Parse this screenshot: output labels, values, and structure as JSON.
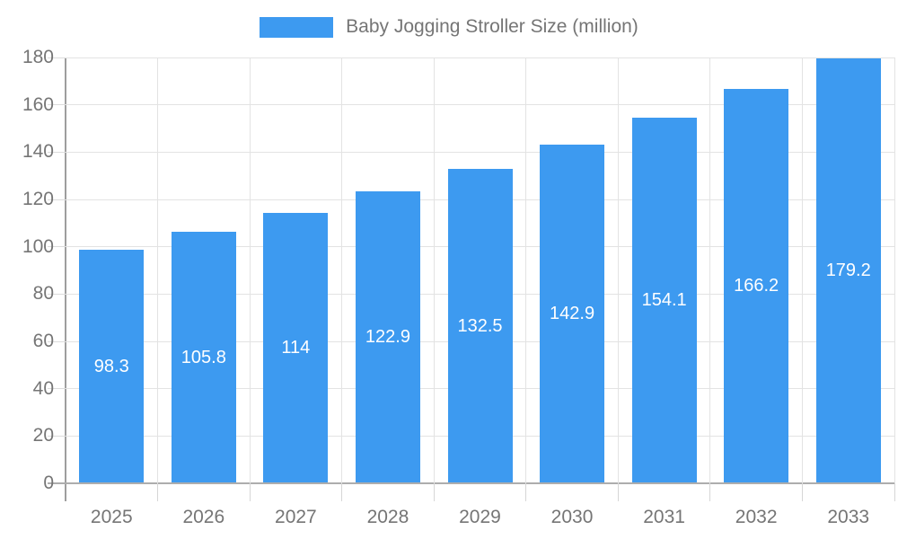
{
  "chart_data": {
    "type": "bar",
    "title": "Baby Jogging Stroller Size (million)",
    "series_name": "Baby Jogging Stroller Size (million)",
    "categories": [
      "2025",
      "2026",
      "2027",
      "2028",
      "2029",
      "2030",
      "2031",
      "2032",
      "2033"
    ],
    "values": [
      98.3,
      105.8,
      114,
      122.9,
      132.5,
      142.9,
      154.1,
      166.2,
      179.2
    ],
    "value_labels": [
      "98.3",
      "105.8",
      "114",
      "122.9",
      "132.5",
      "142.9",
      "154.1",
      "166.2",
      "179.2"
    ],
    "yticks": [
      0,
      20,
      40,
      60,
      80,
      100,
      120,
      140,
      160,
      180
    ],
    "ylim": [
      0,
      180
    ],
    "grid": true,
    "legend_position": "top",
    "bar_color": "#3D9AF0",
    "value_label_color": "#FFFFFF",
    "axis_text_color": "#757575",
    "grid_color": "#E3E3E3",
    "axis_line_color": "#9E9E9E"
  }
}
